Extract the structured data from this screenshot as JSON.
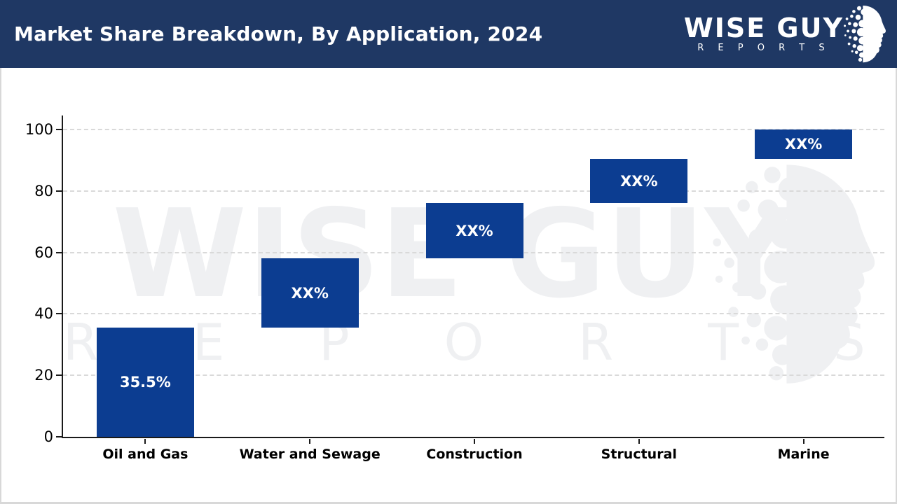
{
  "header": {
    "title": "Market Share Breakdown, By Application, 2024",
    "logo": {
      "name": "WISE GUY",
      "tagline": "R E P O R T S"
    }
  },
  "watermark": {
    "line1": "WISE GUY",
    "line2": "R E P O R T S"
  },
  "colors": {
    "header_bg": "#1f3864",
    "bar": "#0c3d91",
    "grid": "#d9d9d9",
    "axis": "#1a1a1a",
    "watermark": "#eff0f2"
  },
  "chart_data": {
    "type": "bar",
    "subtype": "waterfall",
    "title": "Market Share Breakdown, By Application, 2024",
    "categories": [
      "Oil and Gas",
      "Water and Sewage",
      "Construction",
      "Structural",
      "Marine"
    ],
    "bars": [
      {
        "category": "Oil and Gas",
        "start": 0,
        "end": 35.5,
        "label": "35.5%"
      },
      {
        "category": "Water and Sewage",
        "start": 35.5,
        "end": 58,
        "label": "XX%"
      },
      {
        "category": "Construction",
        "start": 58,
        "end": 76,
        "label": "XX%"
      },
      {
        "category": "Structural",
        "start": 76,
        "end": 90.5,
        "label": "XX%"
      },
      {
        "category": "Marine",
        "start": 90.5,
        "end": 100,
        "label": "XX%"
      }
    ],
    "xlabel": "",
    "ylabel": "",
    "ylim": [
      0,
      100
    ],
    "yticks": [
      0,
      20,
      40,
      60,
      80,
      100
    ],
    "grid": "dashed-horizontal",
    "legend": "none"
  }
}
